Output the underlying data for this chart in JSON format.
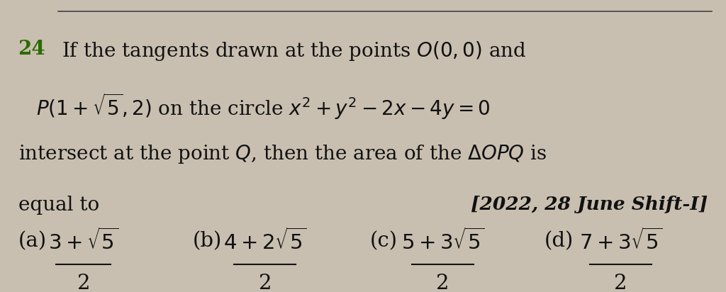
{
  "background_color": "#c8bfb0",
  "text_color": "#111111",
  "qnum_color": "#2d6a00",
  "fig_width": 10.24,
  "fig_height": 4.12,
  "dpi": 100,
  "question_number": "24",
  "line1": "If the tangents drawn at the points $O(0,0)$ and",
  "line2": "$P(1+\\sqrt{5},2)$ on the circle $x^2+y^2-2x-4y=0$",
  "line3": "intersect at the point $Q$, then the area of the $\\Delta OPQ$ is",
  "line4": "equal to",
  "ref": "[2022, 28 June Shift-I]",
  "opt_a_label": "(a)",
  "opt_a_num": "$3+\\sqrt{5}$",
  "opt_a_den": "2",
  "opt_b_label": "(b)",
  "opt_b_num": "$4+2\\sqrt{5}$",
  "opt_b_den": "2",
  "opt_c_label": "(c)",
  "opt_c_num": "$5+3\\sqrt{5}$",
  "opt_c_den": "2",
  "opt_d_label": "(d)",
  "opt_d_num": "$7+3\\sqrt{5}$",
  "opt_d_den": "2",
  "fs_main": 20,
  "fs_opt": 21
}
